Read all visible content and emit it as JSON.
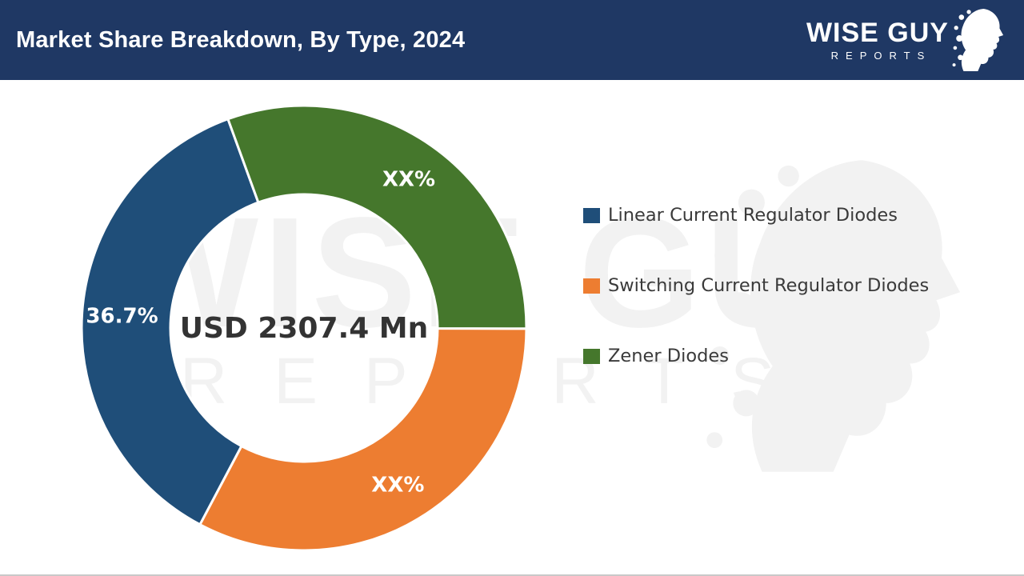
{
  "header": {
    "title": "Market Share Breakdown, By Type, 2024",
    "logo": {
      "line1": "WISE GUY",
      "line2": "REPORTS"
    }
  },
  "chart_data": {
    "type": "pie",
    "subtype": "donut",
    "title": "Market Share Breakdown, By Type, 2024",
    "center_label": "USD 2307.4 Mn",
    "start_angle_deg": 110,
    "direction": "counterclockwise",
    "outer_radius_px": 278,
    "inner_radius_px": 167,
    "label_radius_px": 228,
    "segments": [
      {
        "name": "Linear Current Regulator Diodes",
        "value_pct": 36.7,
        "display_label": "36.7%",
        "color": "#1F4E79"
      },
      {
        "name": "Switching Current Regulator Diodes",
        "value_pct": 32.7,
        "display_label": "XX%",
        "color": "#ED7D31"
      },
      {
        "name": "Zener Diodes",
        "value_pct": 30.6,
        "display_label": "XX%",
        "color": "#45772C"
      }
    ],
    "legend_position": "right"
  },
  "watermark": {
    "line1": "WISE GUY",
    "line2": "REPORTS"
  },
  "colors": {
    "header_bg": "#1F3864",
    "text_dark": "#3A3A3A",
    "center_text": "#333333",
    "segment_label_text": "#FFFFFF",
    "watermark": "#F2F2F2",
    "bottom_line": "#C9C9C9"
  }
}
